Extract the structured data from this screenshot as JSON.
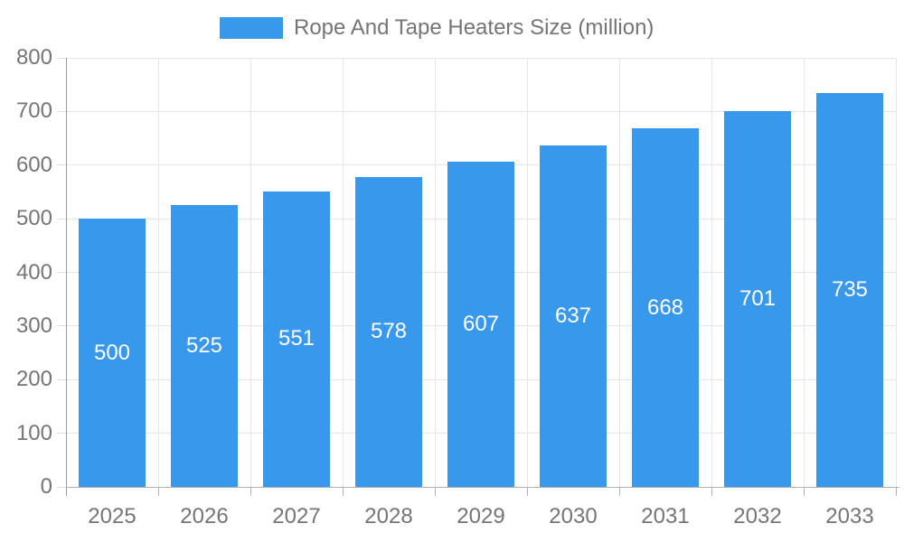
{
  "legend": {
    "label": "Rope And Tape Heaters Size (million)"
  },
  "chart_data": {
    "type": "bar",
    "title": "Rope And Tape Heaters Size (million)",
    "categories": [
      "2025",
      "2026",
      "2027",
      "2028",
      "2029",
      "2030",
      "2031",
      "2032",
      "2033"
    ],
    "values": [
      500,
      525,
      551,
      578,
      607,
      637,
      668,
      701,
      735
    ],
    "series": [
      {
        "name": "Rope And Tape Heaters Size (million)",
        "values": [
          500,
          525,
          551,
          578,
          607,
          637,
          668,
          701,
          735
        ]
      }
    ],
    "xlabel": "",
    "ylabel": "",
    "ylim": [
      0,
      800
    ],
    "yticks": [
      0,
      100,
      200,
      300,
      400,
      500,
      600,
      700,
      800
    ],
    "grid": true,
    "legend_position": "top-center",
    "value_labels": "inside-center",
    "colors": {
      "bar": "#3898ec",
      "value_label": "#ffffff",
      "axis_text": "#757575",
      "gridline": "#e6e6e6",
      "tick_light": "#e0e0e0",
      "baseline": "#b0b0b0",
      "yaxis_line": "#9a9a9a",
      "background": "#ffffff"
    }
  }
}
